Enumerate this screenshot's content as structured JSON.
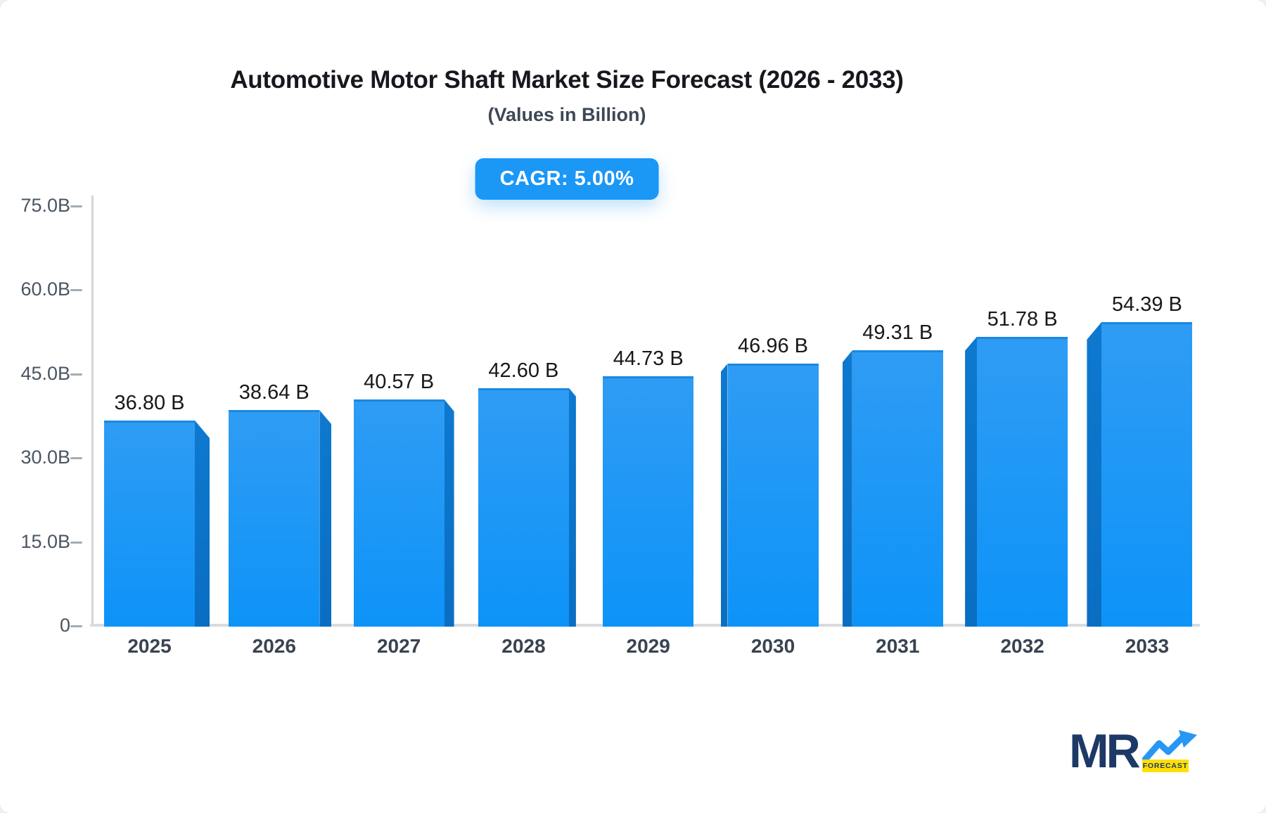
{
  "header": {
    "title": "Automotive Motor Shaft Market Size Forecast (2026 - 2033)",
    "subtitle": "(Values in Billion)",
    "cagr_badge": "CAGR: 5.00%"
  },
  "chart_data": {
    "type": "bar",
    "title": "Automotive Motor Shaft Market Size Forecast (2026 - 2033)",
    "subtitle": "(Values in Billion)",
    "cagr": "5.00%",
    "categories": [
      "2025",
      "2026",
      "2027",
      "2028",
      "2029",
      "2030",
      "2031",
      "2032",
      "2033"
    ],
    "values": [
      36.8,
      38.64,
      40.57,
      42.6,
      44.73,
      46.96,
      49.31,
      51.78,
      54.39
    ],
    "value_labels": [
      "36.80 B",
      "38.64 B",
      "40.57 B",
      "42.60 B",
      "44.73 B",
      "46.96 B",
      "49.31 B",
      "51.78 B",
      "54.39 B"
    ],
    "unit": "Billion",
    "ylim": [
      0,
      75
    ],
    "yticks": [
      {
        "value": 0,
        "label": "0"
      },
      {
        "value": 15,
        "label": "15.0B"
      },
      {
        "value": 30,
        "label": "30.0B"
      },
      {
        "value": 45,
        "label": "45.0B"
      },
      {
        "value": 60,
        "label": "60.0B"
      },
      {
        "value": 75,
        "label": "75.0B"
      }
    ],
    "grid": false,
    "legend": false,
    "colors": {
      "bar_top": "#2f9cf4",
      "bar_bottom": "#0d93f8",
      "bar_side_3d": "#0b73c8",
      "badge_blue": "#1b97f6",
      "axis_gray": "#d4d5d9"
    }
  },
  "logo": {
    "brand": "MR",
    "tag": "FORECAST",
    "brand_color": "#1d3a66",
    "arrow_color": "#2797f3",
    "tag_bg": "#ffdf06"
  }
}
